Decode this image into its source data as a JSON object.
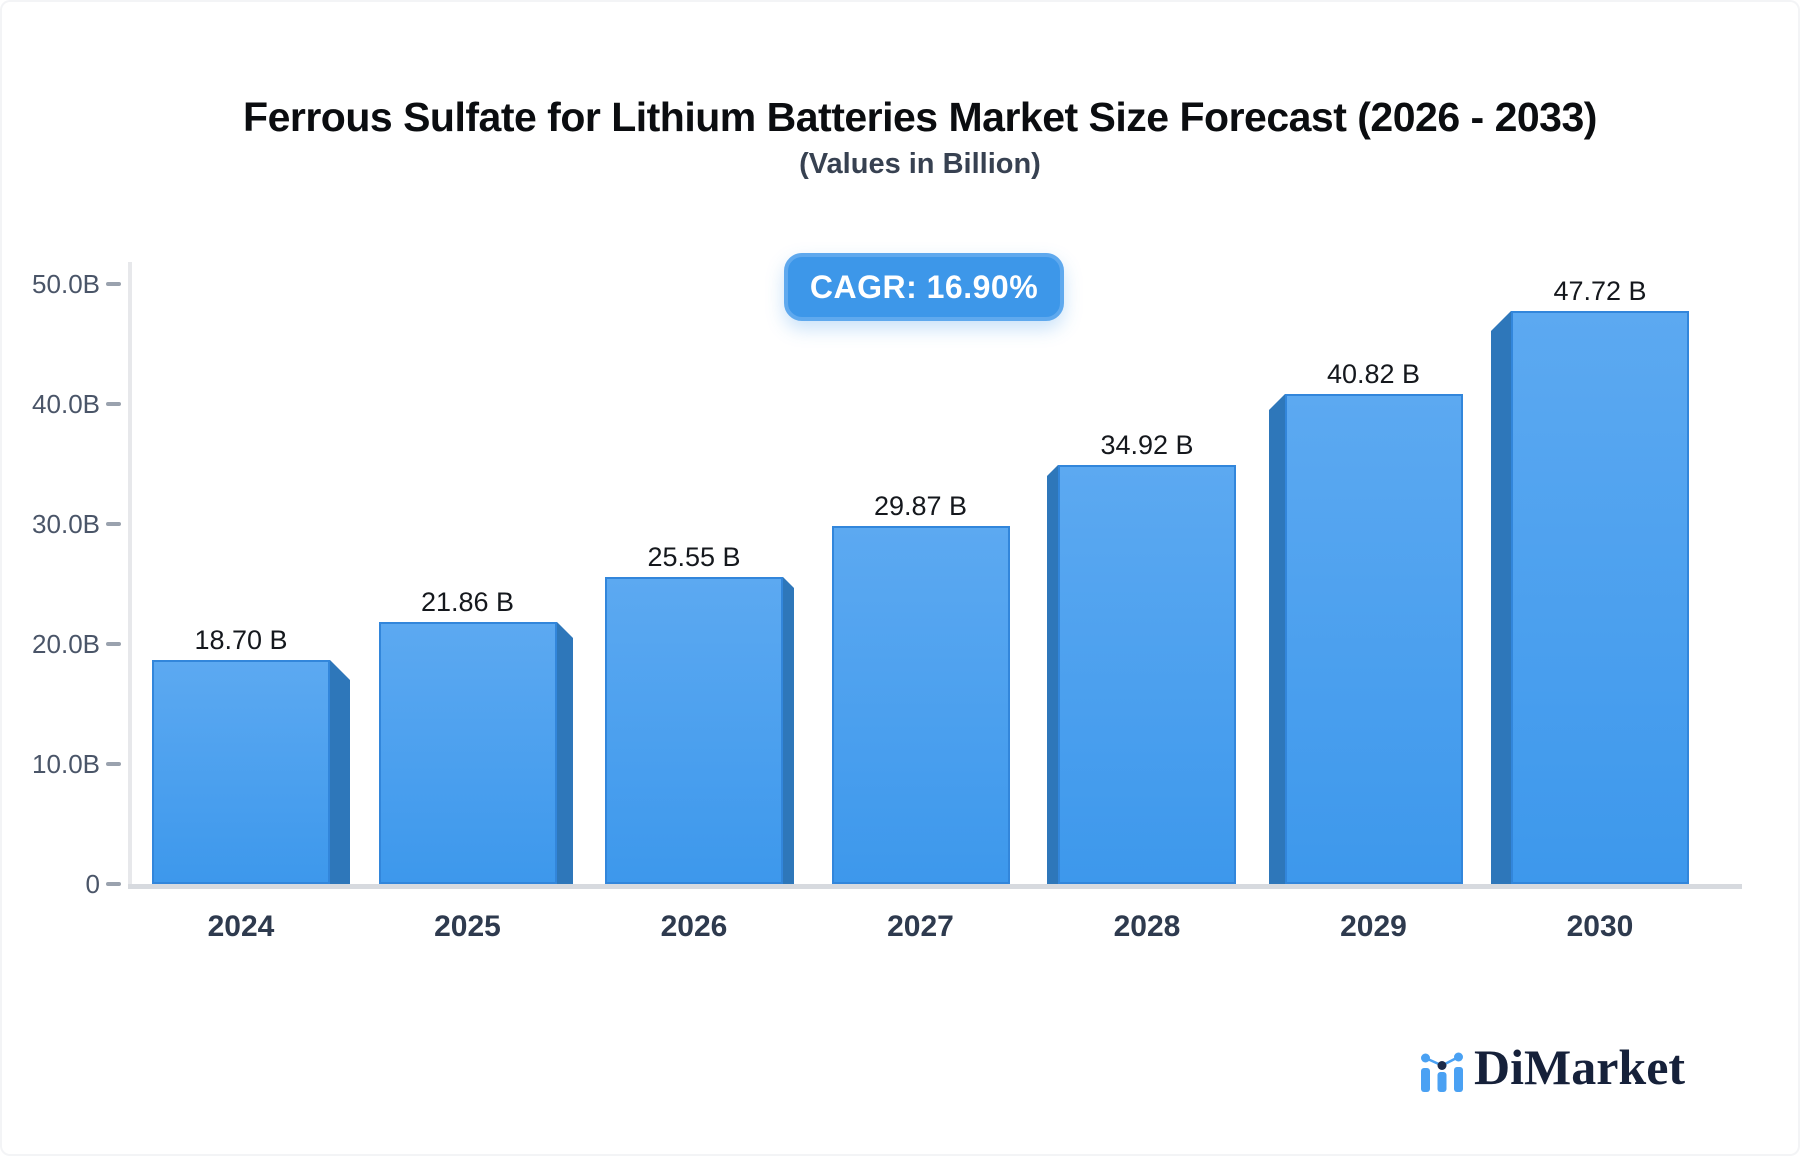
{
  "header": {
    "title": "Ferrous Sulfate for Lithium Batteries Market Size Forecast (2026 - 2033)",
    "subtitle": "(Values in Billion)",
    "cagr_label": "CAGR: 16.90%"
  },
  "chart_data": {
    "type": "bar",
    "title": "Ferrous Sulfate for Lithium Batteries Market Size Forecast (2026 - 2033)",
    "subtitle": "(Values in Billion)",
    "cagr_percent": 16.9,
    "categories": [
      "2024",
      "2025",
      "2026",
      "2027",
      "2028",
      "2029",
      "2030"
    ],
    "values": [
      18.7,
      21.86,
      25.55,
      29.87,
      34.92,
      40.82,
      47.72
    ],
    "bar_labels": [
      "18.70 B",
      "21.86 B",
      "25.55 B",
      "29.87 B",
      "34.92 B",
      "40.82 B",
      "47.72 B"
    ],
    "y_ticks": [
      {
        "value": 0,
        "label": "0"
      },
      {
        "value": 10,
        "label": "10.0B"
      },
      {
        "value": 20,
        "label": "20.0B"
      },
      {
        "value": 30,
        "label": "30.0B"
      },
      {
        "value": 40,
        "label": "40.0B"
      },
      {
        "value": 50,
        "label": "50.0B"
      }
    ],
    "ylim": [
      0,
      50
    ],
    "grid": false,
    "legend": false,
    "bar_style": "3d"
  },
  "branding": {
    "logo_text": "DiMarket"
  },
  "colors": {
    "bar_top": "#5ca9f1",
    "bar_bottom": "#3d98ec",
    "bar_border": "#3286db",
    "bar_side": "#2e77ba",
    "badge_bg": "#3d97e9",
    "badge_border": "#5fa9ee",
    "badge_text": "#ffffff",
    "axis_line": "#e7e8eb",
    "baseline": "#d7dadf",
    "tick_mark": "#9aa2ae",
    "title_text": "#0b0d10",
    "subtitle_text": "#374151",
    "y_label_text": "#4a5568",
    "x_label_text": "#2e3a4e",
    "value_label_text": "#15181d",
    "logo_blue": "#4aa1f3",
    "logo_navy": "#1c2b4a"
  }
}
